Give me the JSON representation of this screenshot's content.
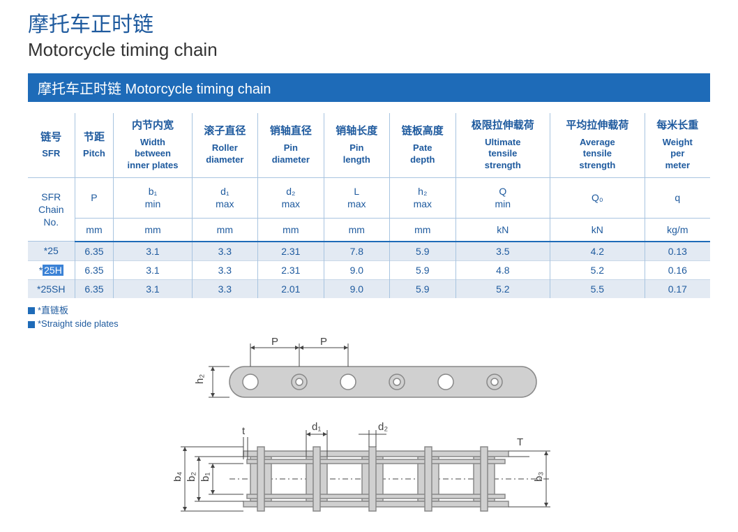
{
  "title": {
    "cn": "摩托车正时链",
    "en": "Motorcycle timing chain"
  },
  "section_bar": "摩托车正时链  Motorcycle timing chain",
  "columns": [
    {
      "cn": "链号",
      "en": "SFR",
      "sym": "SFR\nChain\nNo.",
      "unit": ""
    },
    {
      "cn": "节距",
      "en": "Pitch",
      "sym": "P",
      "unit": "mm"
    },
    {
      "cn": "内节内宽",
      "en": "Width\nbetween\ninner plates",
      "sym": "b₁\nmin",
      "unit": "mm"
    },
    {
      "cn": "滚子直径",
      "en": "Roller\ndiameter",
      "sym": "d₁\nmax",
      "unit": "mm"
    },
    {
      "cn": "销轴直径",
      "en": "Pin\ndiameter",
      "sym": "d₂\nmax",
      "unit": "mm"
    },
    {
      "cn": "销轴长度",
      "en": "Pin\nlength",
      "sym": "L\nmax",
      "unit": "mm"
    },
    {
      "cn": "链板高度",
      "en": "Pate\ndepth",
      "sym": "h₂\nmax",
      "unit": "mm"
    },
    {
      "cn": "极限拉伸载荷",
      "en": "Ultimate\ntensile\nstrength",
      "sym": "Q\nmin",
      "unit": "kN"
    },
    {
      "cn": "平均拉伸载荷",
      "en": "Average\ntensile\nstrength",
      "sym": "Q₀",
      "unit": "kN"
    },
    {
      "cn": "每米长重",
      "en": "Weight\nper\nmeter",
      "sym": "q",
      "unit": "kg/m"
    }
  ],
  "rows": [
    {
      "alt": true,
      "cells": [
        "*25",
        "6.35",
        "3.1",
        "3.3",
        "2.31",
        "7.8",
        "5.9",
        "3.5",
        "4.2",
        "0.13"
      ]
    },
    {
      "alt": false,
      "cells": [
        "*25H",
        "6.35",
        "3.1",
        "3.3",
        "2.31",
        "9.0",
        "5.9",
        "4.8",
        "5.2",
        "0.16"
      ],
      "highlight_col0": "25H"
    },
    {
      "alt": true,
      "cells": [
        "*25SH",
        "6.35",
        "3.1",
        "3.3",
        "2.01",
        "9.0",
        "5.9",
        "5.2",
        "5.5",
        "0.17"
      ]
    }
  ],
  "footnote": {
    "cn": "*直链板",
    "en": "*Straight side plates"
  },
  "diagram": {
    "labels": {
      "P": "P",
      "h2": "h₂",
      "d1": "d₁",
      "d2": "d₂",
      "T": "T",
      "t": "t",
      "b1": "b₁",
      "b2": "b₂",
      "b3": "b₃",
      "b4": "b₄"
    },
    "colors": {
      "plate_fill": "#d0d0d0",
      "plate_stroke": "#888888",
      "dim_stroke": "#444444",
      "dim_text": "#444444",
      "background": "#ffffff"
    }
  },
  "style": {
    "brand_blue": "#1e6bb8",
    "text_blue": "#1e5a9e",
    "row_alt_bg": "#e3eaf3",
    "border_color": "#a8c4e0",
    "highlight_bg": "#3b82d6"
  }
}
